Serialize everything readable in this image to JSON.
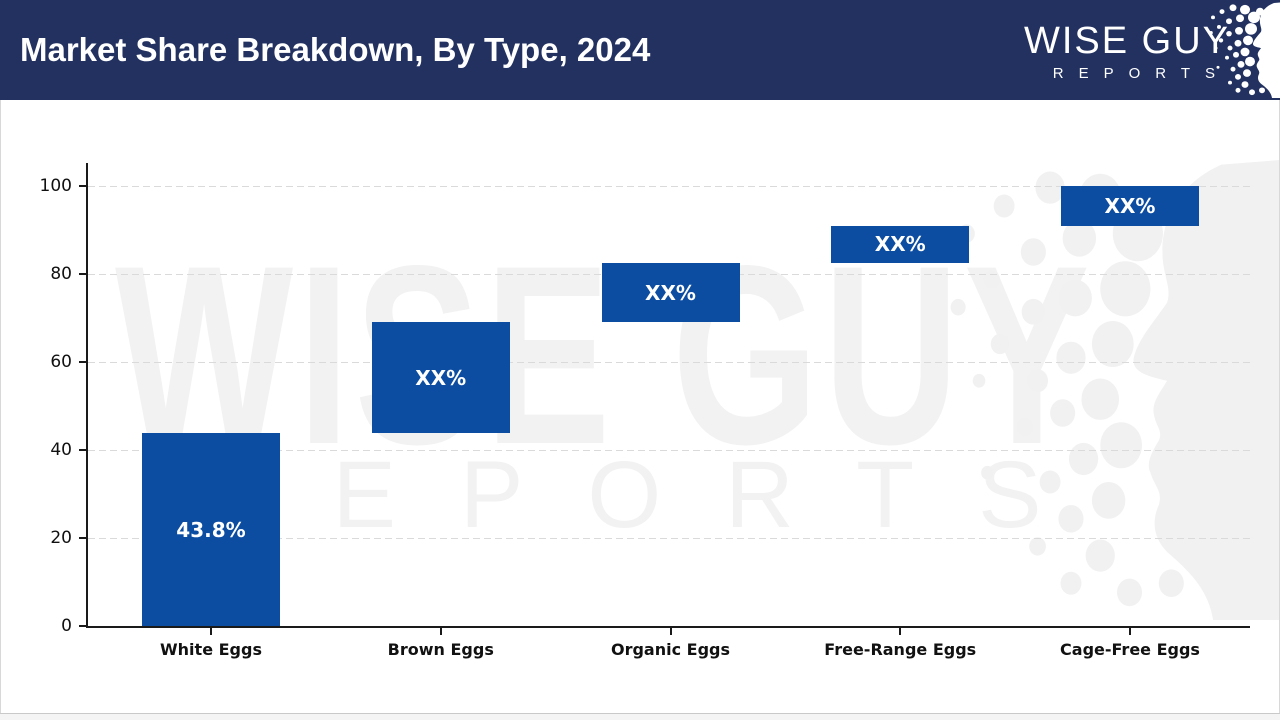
{
  "header": {
    "title": "Market Share Breakdown, By Type, 2024",
    "brand": {
      "line1": "WISE GUY",
      "line2": "REPORTS"
    }
  },
  "watermark": {
    "line1": "WISE GUY",
    "line2": "REPORTS"
  },
  "chart_data": {
    "type": "bar",
    "subtype": "waterfall",
    "title": "Market Share Breakdown, By Type, 2024",
    "xlabel": "",
    "ylabel": "",
    "categories": [
      "White Eggs",
      "Brown Eggs",
      "Organic Eggs",
      "Free-Range Eggs",
      "Cage-Free Eggs"
    ],
    "series": [
      {
        "name": "market-share-percent",
        "segments": [
          {
            "category": "White Eggs",
            "start": 0,
            "end": 43.8,
            "value": 43.8,
            "label": "43.8%"
          },
          {
            "category": "Brown Eggs",
            "start": 43.8,
            "end": 69.0,
            "value": 25.2,
            "label": "XX%"
          },
          {
            "category": "Organic Eggs",
            "start": 69.0,
            "end": 82.5,
            "value": 13.5,
            "label": "XX%"
          },
          {
            "category": "Free-Range Eggs",
            "start": 82.5,
            "end": 91.0,
            "value": 8.5,
            "label": "XX%"
          },
          {
            "category": "Cage-Free Eggs",
            "start": 91.0,
            "end": 100.0,
            "value": 9.0,
            "label": "XX%"
          }
        ]
      }
    ],
    "ylim": [
      0,
      105
    ],
    "yticks": [
      0,
      20,
      40,
      60,
      80,
      100
    ],
    "grid": "horizontal dashed",
    "legend": "none",
    "bar_color": "#0c4da2",
    "bar_label_color": "#ffffff"
  },
  "colors": {
    "header_bg": "#223160",
    "bar": "#0c4da2",
    "watermark": "#f1f1f1",
    "gridline": "#dadada",
    "axis": "#1a1a1a"
  }
}
